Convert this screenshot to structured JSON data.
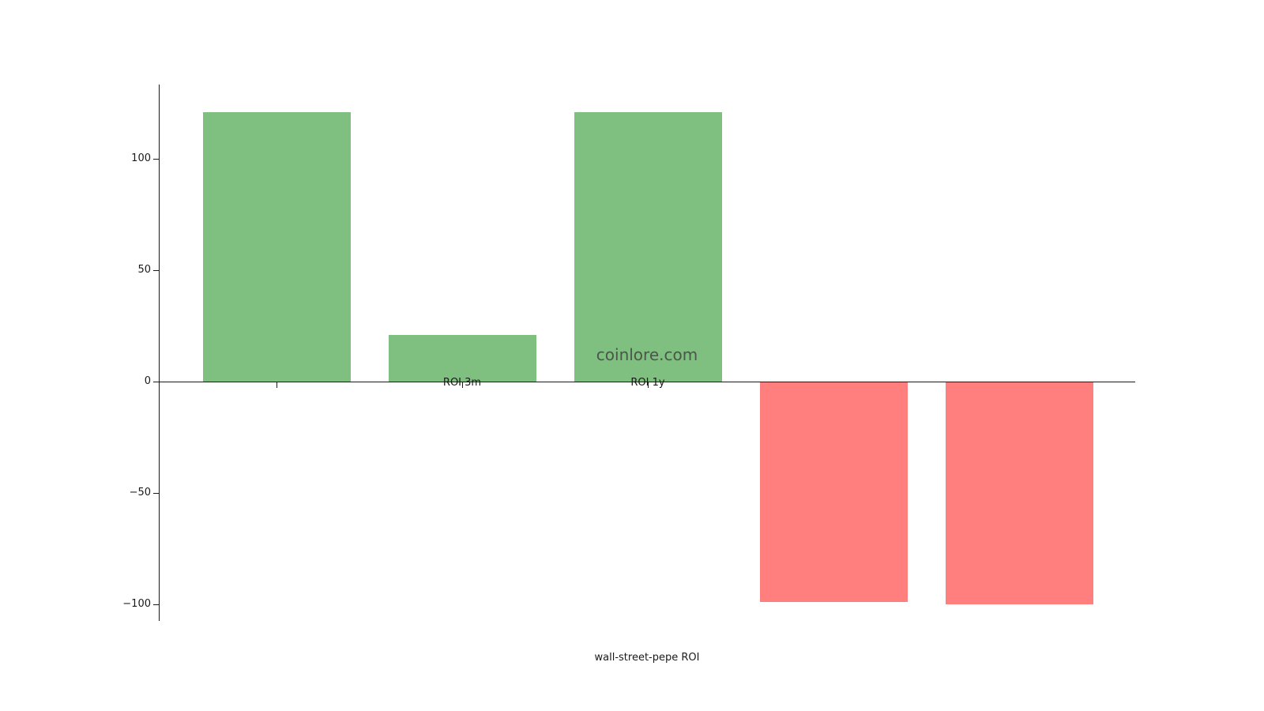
{
  "figure": {
    "watermark": "coinlore.com",
    "xlabel": "wall-street-pepe ROI"
  },
  "chart_data": {
    "type": "bar",
    "title": "",
    "xlabel": "wall-street-pepe ROI",
    "ylabel": "",
    "categories": [
      "",
      "ROI 3m",
      "ROI 1y",
      "",
      ""
    ],
    "values": [
      121,
      21,
      121,
      -99,
      -100
    ],
    "bar_colors": [
      "#7fbf7f",
      "#7fbf7f",
      "#7fbf7f",
      "#ff7f7f",
      "#ff7f7f"
    ],
    "positive_color": "#7fbf7f",
    "negative_color": "#ff7f7f",
    "yticks": [
      100,
      50,
      0,
      -50,
      -100
    ],
    "ytick_labels": [
      "100",
      "50",
      "0",
      "−50",
      "−100"
    ],
    "xticks": [
      {
        "index": 0,
        "label": ""
      },
      {
        "index": 1,
        "label": "ROI 3m"
      },
      {
        "index": 2,
        "label": "ROI 1y"
      }
    ],
    "ylim": [
      -107,
      133
    ],
    "grid": false,
    "legend": "none",
    "watermark": "coinlore.com"
  }
}
